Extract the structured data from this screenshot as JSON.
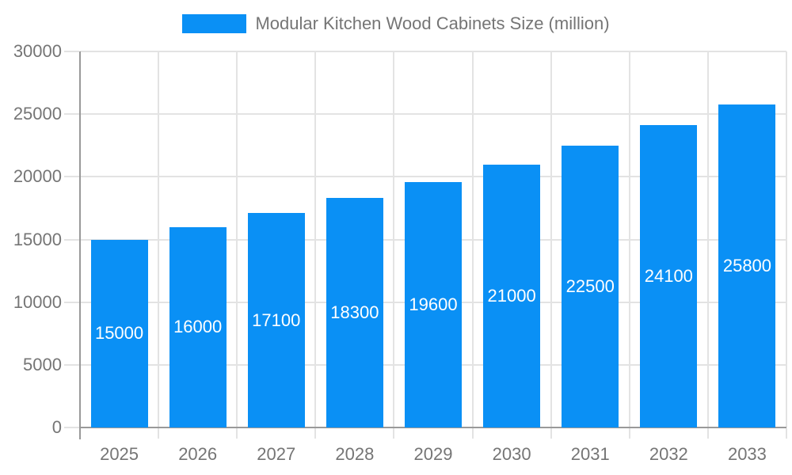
{
  "legend": {
    "label": "Modular Kitchen Wood Cabinets Size (million)"
  },
  "chart_data": {
    "type": "bar",
    "title": "Modular Kitchen Wood Cabinets Size (million)",
    "categories": [
      "2025",
      "2026",
      "2027",
      "2028",
      "2029",
      "2030",
      "2031",
      "2032",
      "2033"
    ],
    "values": [
      15000,
      16000,
      17100,
      18300,
      19600,
      21000,
      22500,
      24100,
      25800
    ],
    "value_labels": [
      "15000",
      "16000",
      "17100",
      "18300",
      "19600",
      "21000",
      "22500",
      "24100",
      "25800"
    ],
    "xlabel": "",
    "ylabel": "",
    "ylim": [
      0,
      30000
    ],
    "ytick_step": 5000,
    "ytick_labels": [
      "0",
      "5000",
      "10000",
      "15000",
      "20000",
      "25000",
      "30000"
    ],
    "grid": true,
    "legend_position": "top",
    "colors": {
      "bar": "#0a90f5",
      "value_label": "#ffffff",
      "tick_label": "#757575",
      "grid": "#e3e3e3",
      "axis": "#999999",
      "background": "#ffffff"
    }
  }
}
